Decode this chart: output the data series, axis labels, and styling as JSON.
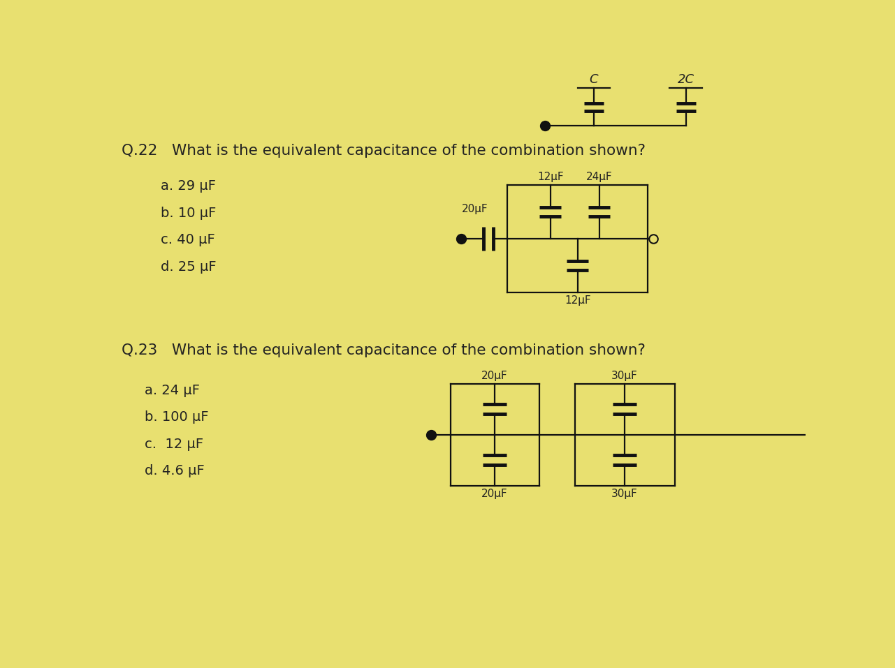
{
  "bg_color": "#e8e070",
  "title_q22": "Q.22   What is the equivalent capacitance of the combination shown?",
  "title_q23": "Q.23   What is the equivalent capacitance of the combination shown?",
  "options_q22": [
    "a. 29 μF",
    "b. 10 μF",
    "c. 40 μF",
    "d. 25 μF"
  ],
  "options_q23": [
    "a. 24 μF",
    "b. 100 μF",
    "c.  12 μF",
    "d. 4.6 μF"
  ],
  "text_color": "#222222",
  "circuit_color": "#111111",
  "line_width": 1.6
}
